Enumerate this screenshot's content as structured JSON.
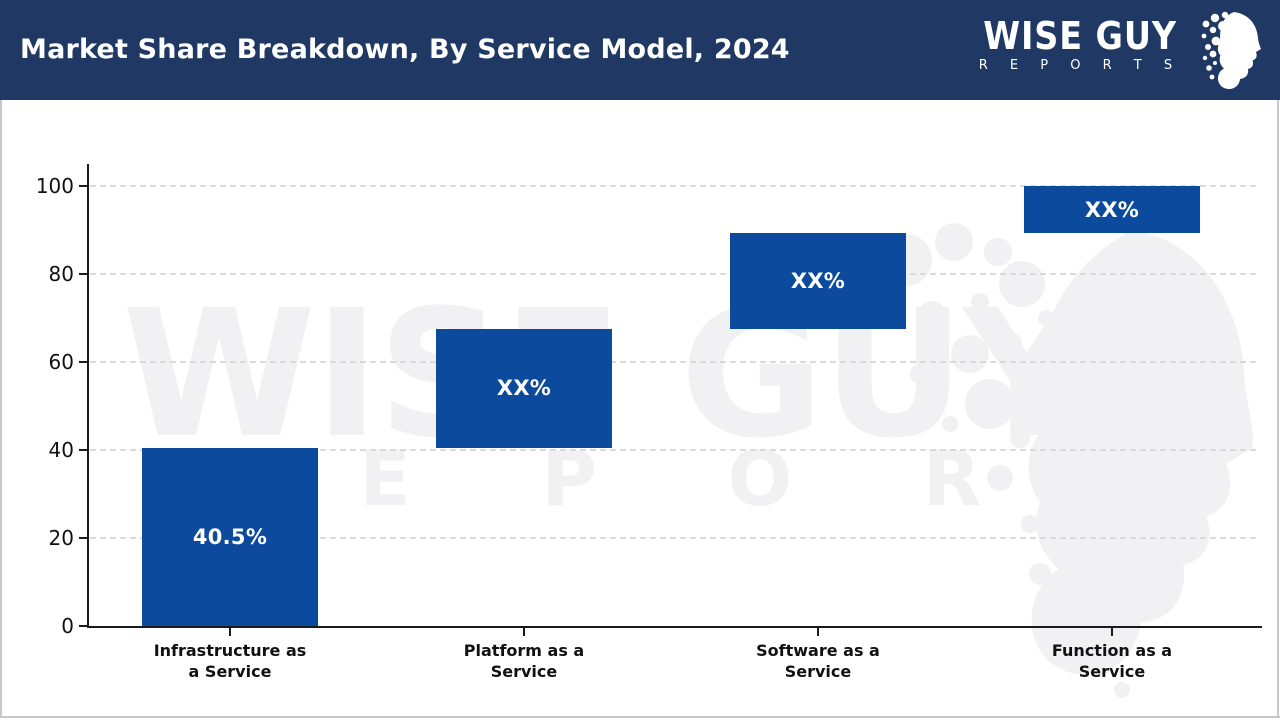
{
  "header": {
    "title": "Market Share Breakdown, By Service Model, 2024",
    "logo": {
      "line1": "WISE GUY",
      "line2": "R E P O R T S",
      "icon": "wiseguy-face-dots-icon"
    }
  },
  "watermark": {
    "line1": "WISE GUY",
    "line2": "R E P O R T S"
  },
  "chart_data": {
    "type": "bar",
    "subtype": "waterfall",
    "title": "Market Share Breakdown, By Service Model, 2024",
    "categories": [
      [
        "Infrastructure as",
        "a Service"
      ],
      [
        "Platform as a",
        "Service"
      ],
      [
        "Software as a",
        "Service"
      ],
      [
        "Function as a",
        "Service"
      ]
    ],
    "bars": [
      {
        "category": "Infrastructure as a Service",
        "start": 0,
        "end": 40.5,
        "label": "40.5%"
      },
      {
        "category": "Platform as a Service",
        "start": 40.5,
        "end": 67.5,
        "label": "XX%"
      },
      {
        "category": "Software as a Service",
        "start": 67.5,
        "end": 89.3,
        "label": "XX%"
      },
      {
        "category": "Function as a Service",
        "start": 89.3,
        "end": 100,
        "label": "XX%"
      }
    ],
    "y_ticks": [
      0,
      20,
      40,
      60,
      80,
      100
    ],
    "ylim": [
      0,
      105
    ],
    "xlabel": "",
    "ylabel": "",
    "grid": "dashed horizontal",
    "legend": "none",
    "bar_color": "#0c4a9e",
    "bar_value_color": "#ffffff"
  },
  "colors": {
    "header_bg": "#1f3864",
    "header_text": "#ffffff",
    "bar_fill": "#0c4a9e",
    "axis": "#1a1a1a",
    "gridline": "#d9d9d9",
    "watermark": "#f1f1f3",
    "page_border": "#c8c8c8",
    "background": "#ffffff"
  }
}
